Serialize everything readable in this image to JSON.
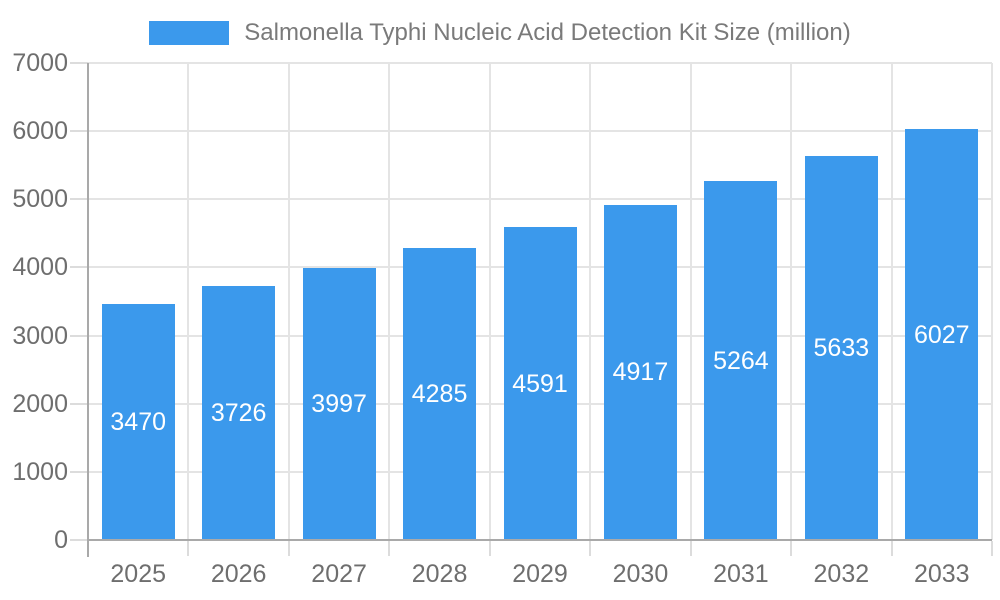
{
  "legend": {
    "label": "Salmonella Typhi Nucleic Acid Detection Kit Size (million)"
  },
  "colors": {
    "bar": "#3B99EC",
    "bar_label": "#FFFFFF",
    "axis_line": "#A9A9A9",
    "grid_line": "#E4E4E4",
    "tick_line": "#DCDCDC",
    "axis_label": "#6E6E6E",
    "legend_text": "#7A7A7A",
    "background": "#FFFFFF"
  },
  "chart_data": {
    "type": "bar",
    "title": "Salmonella Typhi Nucleic Acid Detection Kit Size (million)",
    "categories": [
      "2025",
      "2026",
      "2027",
      "2028",
      "2029",
      "2030",
      "2031",
      "2032",
      "2033"
    ],
    "values": [
      3470,
      3726,
      3997,
      4285,
      4591,
      4917,
      5264,
      5633,
      6027
    ],
    "value_labels": [
      "3470",
      "3726",
      "3997",
      "4285",
      "4591",
      "4917",
      "5264",
      "5633",
      "6027"
    ],
    "xlabel": "",
    "ylabel": "",
    "ylim": [
      0,
      7000
    ],
    "yticks": [
      0,
      1000,
      2000,
      3000,
      4000,
      5000,
      6000,
      7000
    ],
    "ytick_labels": [
      "0",
      "1000",
      "2000",
      "3000",
      "4000",
      "5000",
      "6000",
      "7000"
    ],
    "grid": true,
    "legend_position": "top-center",
    "bar_label_position": "inside-center"
  }
}
